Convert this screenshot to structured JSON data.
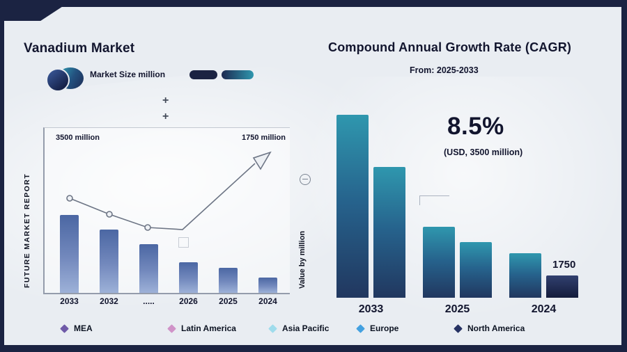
{
  "header": {
    "left_title": "Vanadium Market",
    "right_title": "Compound Annual Growth Rate (CAGR)",
    "right_subtitle": "From: 2025-2033"
  },
  "cagr": {
    "value": "8.5%",
    "note": "(USD, 3500 million)"
  },
  "watermark": "FUTURE MARKET REPORT",
  "market_size_legend": "Market Size million",
  "decorations": {
    "plus": "+"
  },
  "chart_data": [
    {
      "type": "bar",
      "name": "market-size-projection",
      "title": "Market Size million",
      "categories": [
        "2033",
        "2032",
        ".....",
        "2026",
        "2025",
        "2024"
      ],
      "bar_heights_pct": [
        85,
        69,
        53,
        33,
        27,
        17
      ],
      "annotations": [
        {
          "text": "3500 million",
          "position": "top-left"
        },
        {
          "text": "1750 million",
          "position": "top-right"
        }
      ],
      "trend_line": {
        "markers": 3,
        "arrow": true,
        "direction": "up-right"
      },
      "grid": false
    },
    {
      "type": "bar",
      "name": "value-by-year",
      "ylabel": "Value by million",
      "groups": [
        {
          "label": "2033",
          "bar_heights_pct": [
            98,
            70
          ],
          "styles": [
            "teal",
            "teal"
          ]
        },
        {
          "label": "2025",
          "bar_heights_pct": [
            38,
            30
          ],
          "styles": [
            "teal",
            "teal"
          ]
        },
        {
          "label": "2024",
          "bar_heights_pct": [
            24,
            12
          ],
          "styles": [
            "teal",
            "navy"
          ]
        }
      ],
      "annotations": [
        {
          "text": "1750",
          "target": "2024"
        }
      ],
      "grid": false
    }
  ],
  "legend": {
    "items": [
      {
        "label": "MEA",
        "color": "#6f5aa8"
      },
      {
        "label": "Latin America",
        "color": "#d093c8"
      },
      {
        "label": "Asia Pacific",
        "color": "#9fdcec"
      },
      {
        "label": "Europe",
        "color": "#44a1e0"
      },
      {
        "label": "North America",
        "color": "#263263"
      }
    ]
  },
  "colors": {
    "frame": "#1b2342",
    "background": "#e9edf2",
    "text": "#12152e",
    "left_bar_top": "#4b67a3",
    "left_bar_bottom": "#9db1d8",
    "right_bar_top": "#2f97ae",
    "right_bar_bottom": "#21375f",
    "navy_bar_top": "#31406f",
    "navy_bar_bottom": "#141c3c"
  }
}
